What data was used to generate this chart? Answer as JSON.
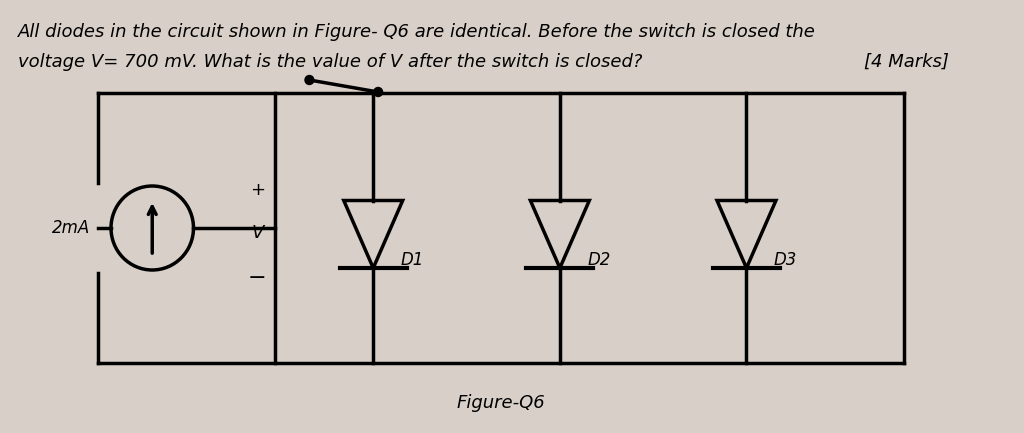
{
  "bg_color": "#d8d0c8",
  "title_text": "All diodes in the circuit shown in Figure- Q6 are identical. Before the switch is closed the\nvoltage V= 700 mV. What is the value of V after the switch is closed?",
  "marks_text": "[4 Marks]",
  "caption": "Figure-Q6",
  "title_fontsize": 13,
  "caption_fontsize": 13,
  "line_color": "#000000",
  "line_width": 2.5,
  "text_color": "#000000"
}
